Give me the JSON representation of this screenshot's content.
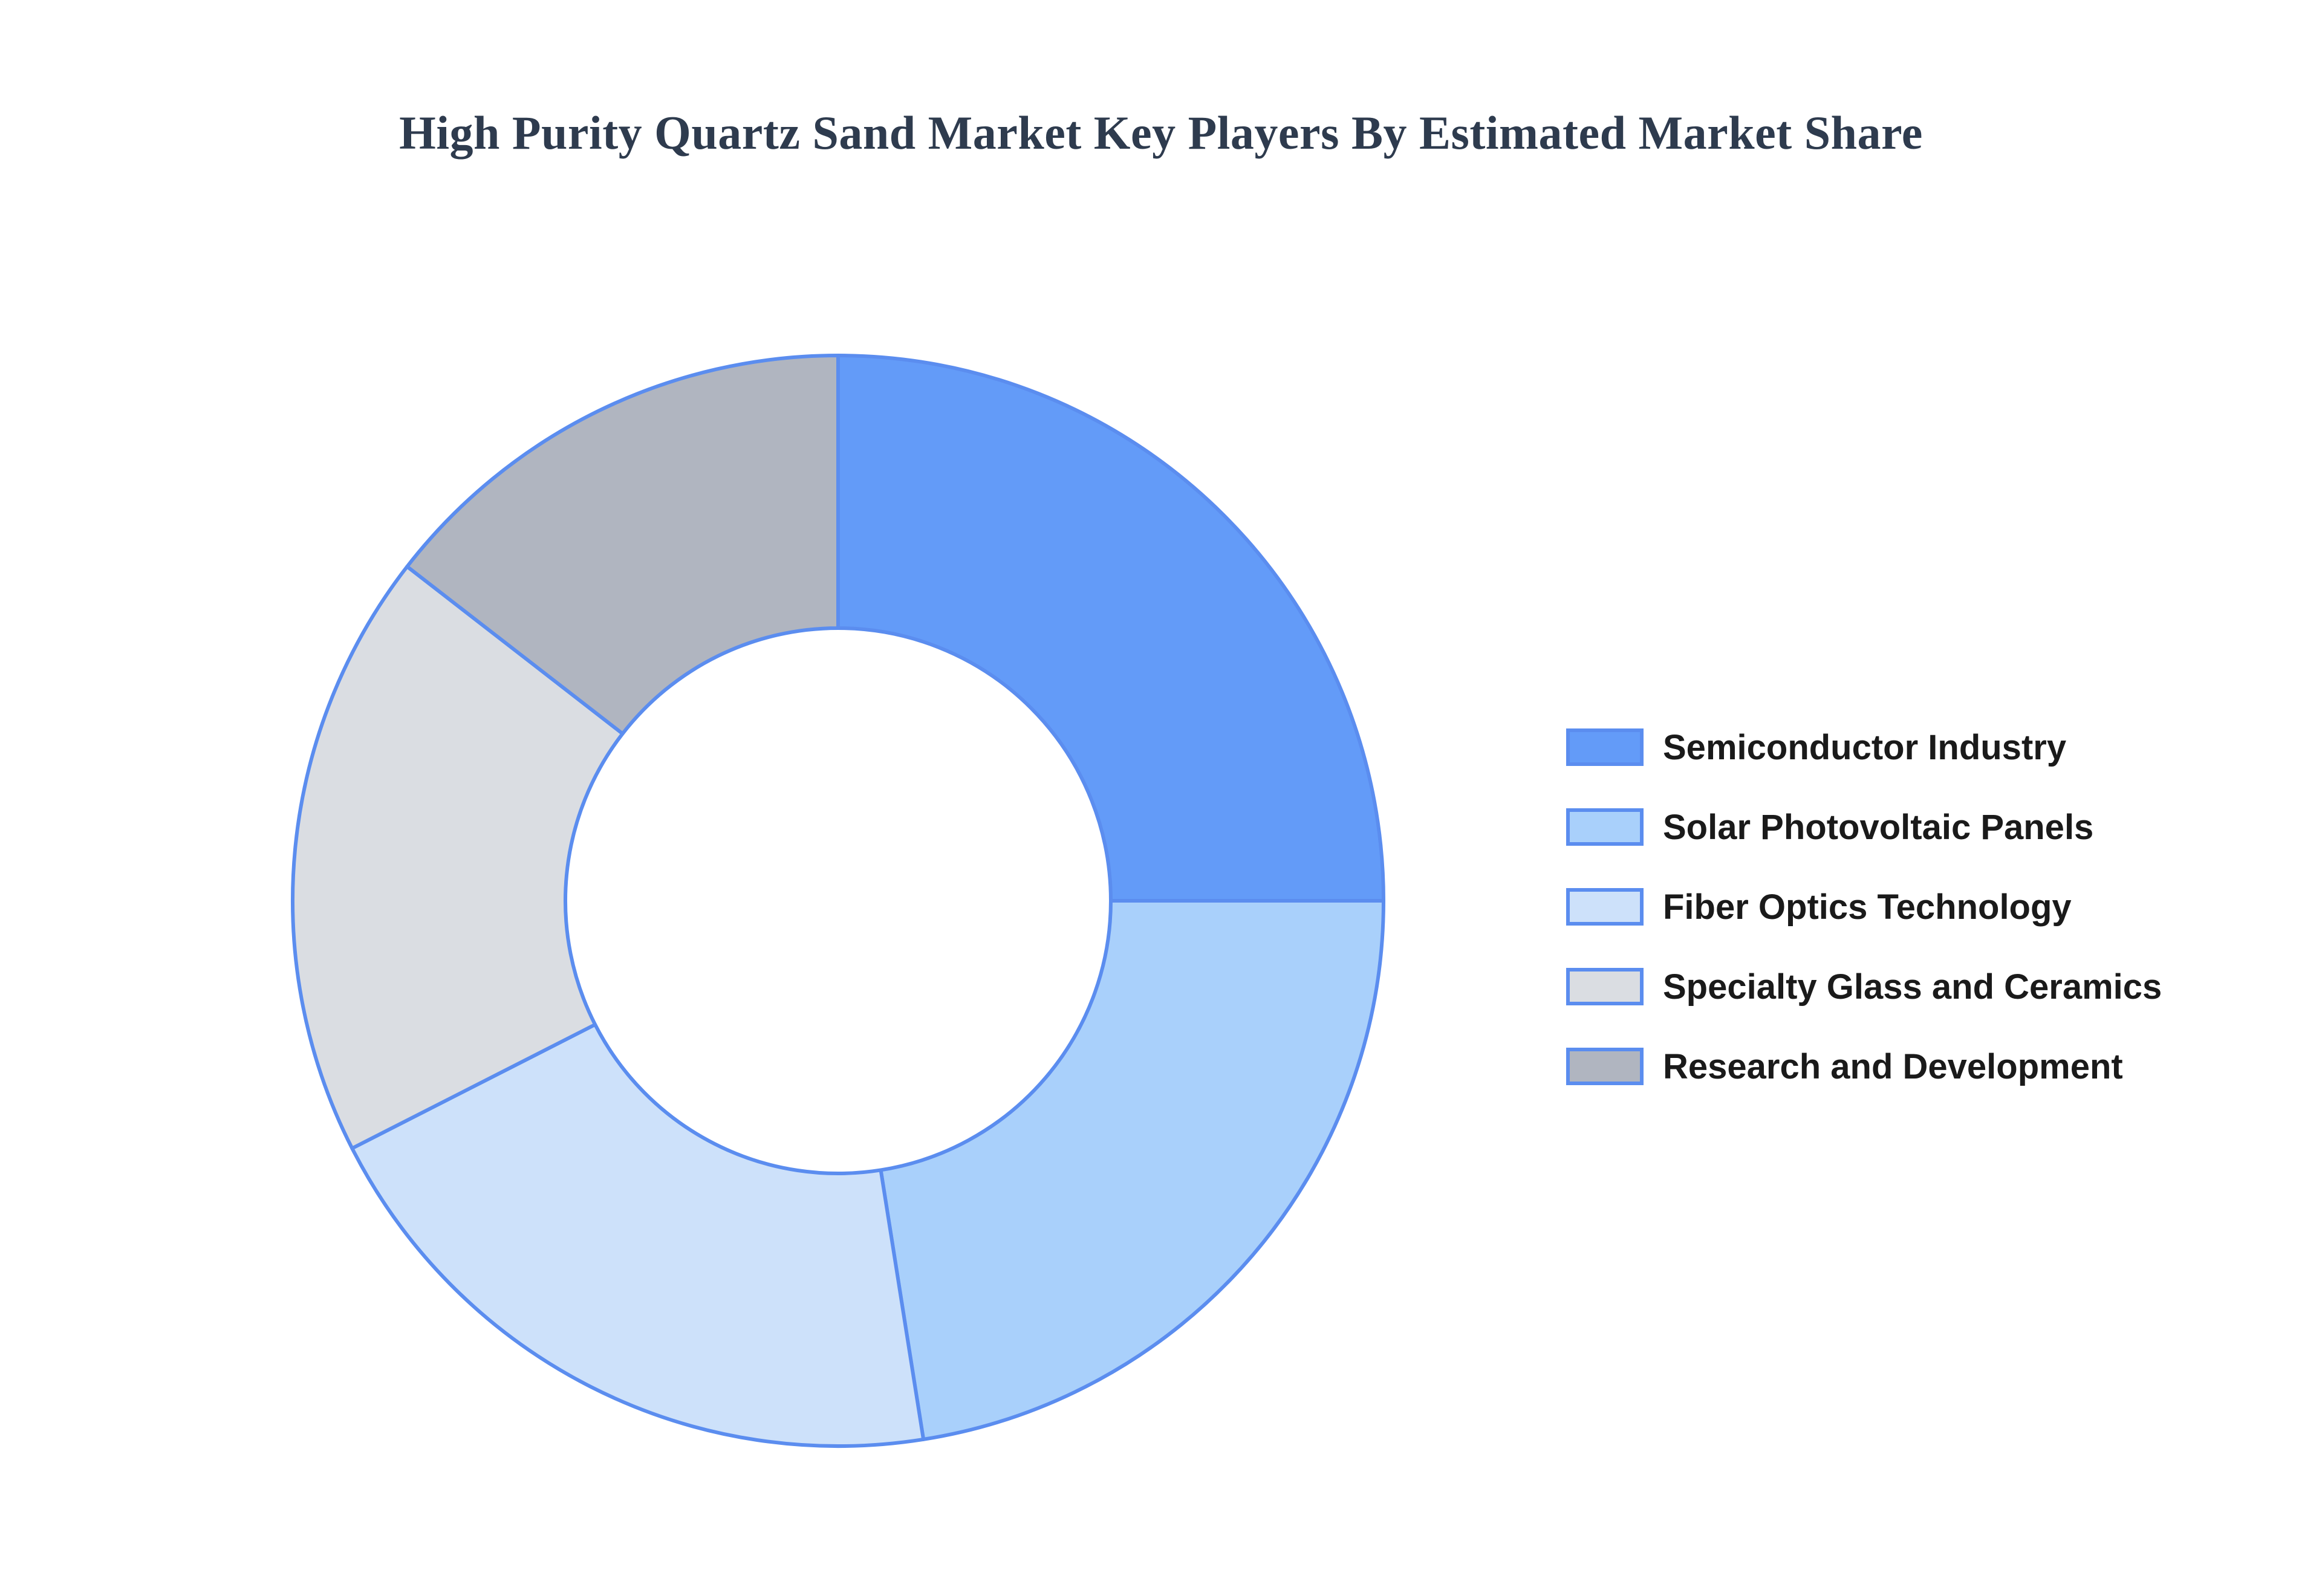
{
  "chart_data": {
    "type": "pie",
    "title": "High Purity Quartz Sand Market Key Players By Estimated Market Share",
    "hole": 0.5,
    "legend_position": "right",
    "slice_outline_color": "#5b8def",
    "categories": [
      "Semiconductor Industry",
      "Solar Photovoltaic Panels",
      "Fiber Optics Technology",
      "Specialty Glass and Ceramics",
      "Research and Development"
    ],
    "values": [
      25,
      22.5,
      20,
      18,
      14.5
    ],
    "colors": [
      "#639bf8",
      "#a9d0fb",
      "#cde1fa",
      "#dadde2",
      "#b0b5c0"
    ]
  }
}
